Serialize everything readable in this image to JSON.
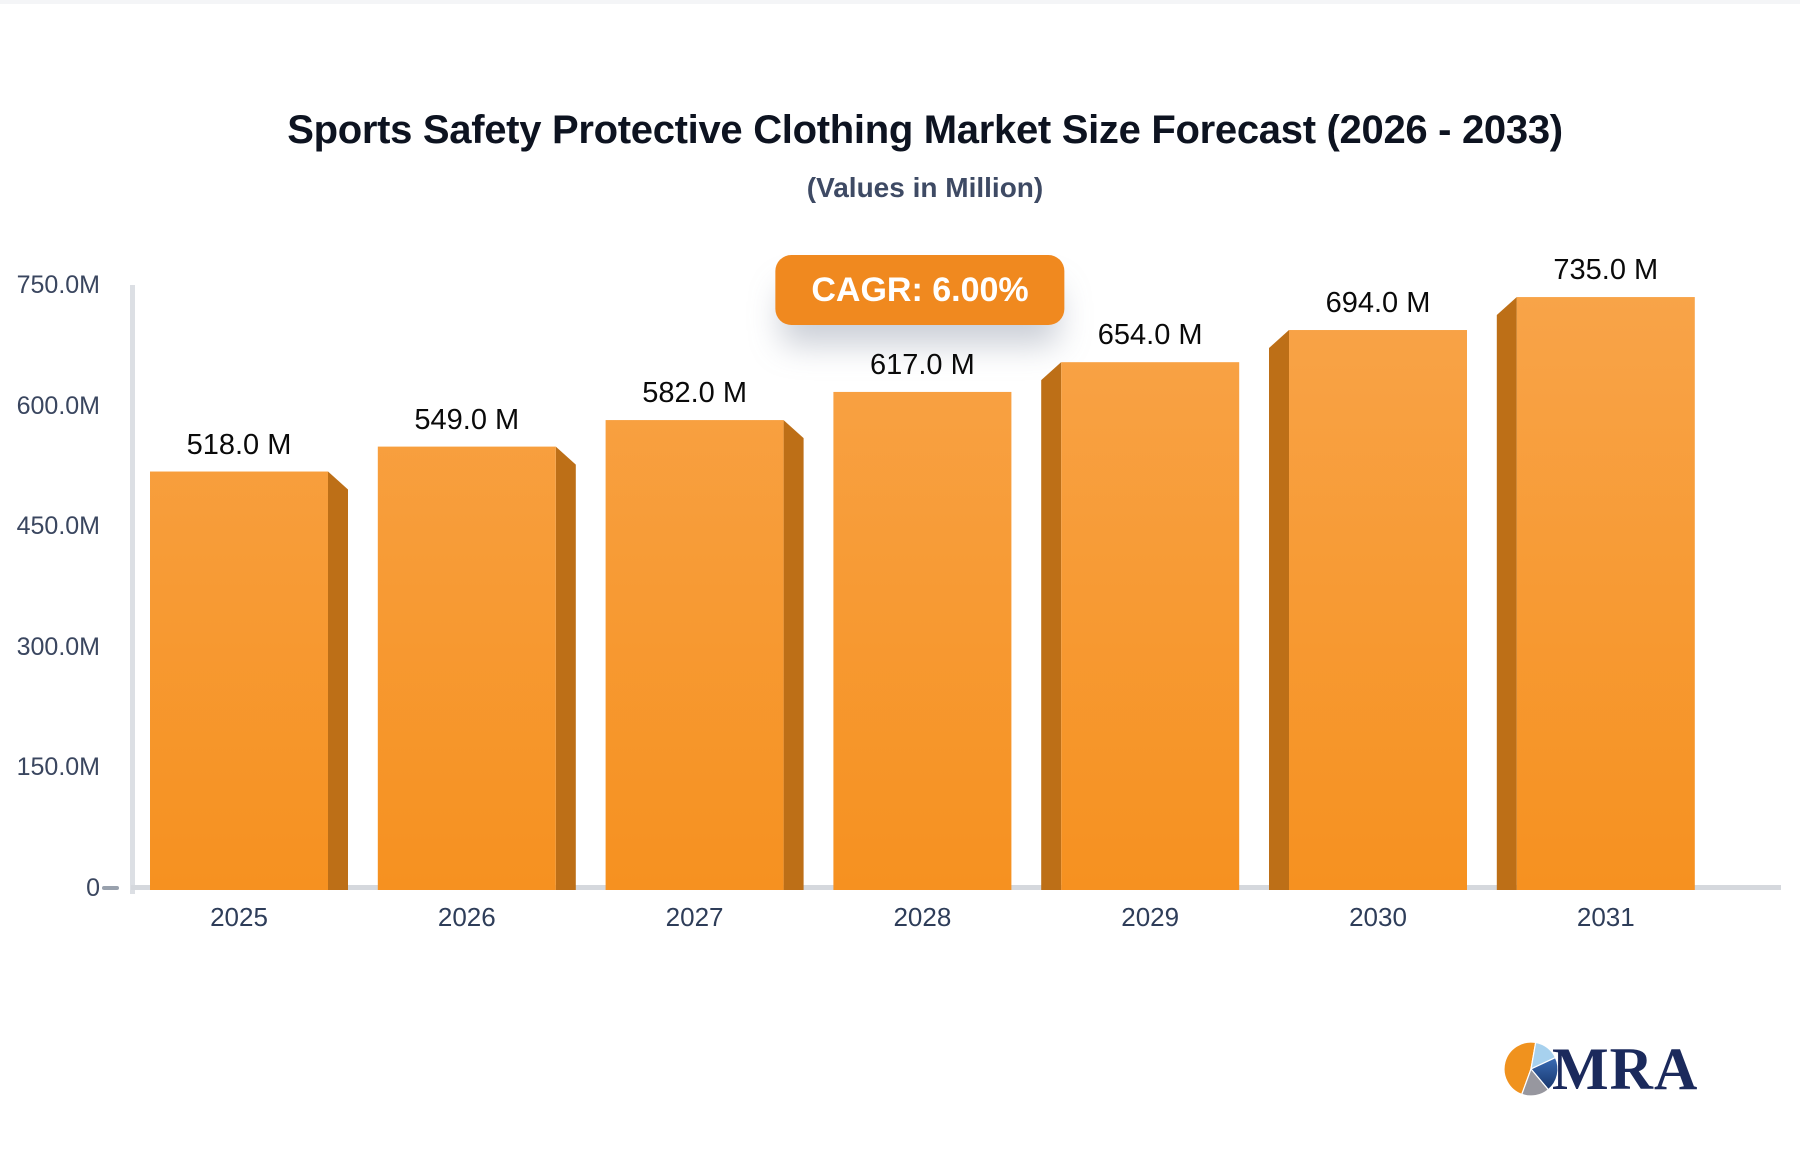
{
  "header": {
    "title": "Sports Safety Protective Clothing Market Size Forecast (2026 - 2033)",
    "subtitle": "(Values in Million)"
  },
  "badge": {
    "label": "CAGR: 6.00%",
    "bg_color": "#f0891f",
    "text_color": "#ffffff"
  },
  "logo": {
    "text": "MRA",
    "text_color": "#1b2a5c",
    "pie_colors": {
      "orange": "#f0921e",
      "light_blue": "#a7d1ee",
      "blue_top": "#3a6cb5",
      "blue_bottom": "#17356b",
      "gray": "#97979f"
    }
  },
  "chart_data": {
    "type": "bar",
    "title": "Sports Safety Protective Clothing Market Size Forecast (2026 - 2033)",
    "subtitle": "(Values in Million)",
    "unit": "Million",
    "cagr_pct": "6.00%",
    "categories": [
      "2025",
      "2026",
      "2027",
      "2028",
      "2029",
      "2030",
      "2031"
    ],
    "values": [
      518,
      549,
      582,
      617,
      654,
      694,
      735
    ],
    "value_labels": [
      "518.0 M",
      "549.0 M",
      "582.0 M",
      "617.0 M",
      "654.0 M",
      "694.0 M",
      "735.0 M"
    ],
    "y_ticks": [
      {
        "value": 0,
        "label": "0"
      },
      {
        "value": 150,
        "label": "150.0M"
      },
      {
        "value": 300,
        "label": "300.0M"
      },
      {
        "value": 450,
        "label": "450.0M"
      },
      {
        "value": 600,
        "label": "600.0M"
      },
      {
        "value": 750,
        "label": "750.0M"
      }
    ],
    "ylim": [
      0,
      750
    ],
    "xlabel": "",
    "ylabel": "",
    "grid": false,
    "legend": null,
    "bar_color_top": "#f8a449",
    "bar_color_bottom": "#f69120",
    "bar_side_color": "#bd6f17",
    "axis_color": "#dcdfe4"
  }
}
